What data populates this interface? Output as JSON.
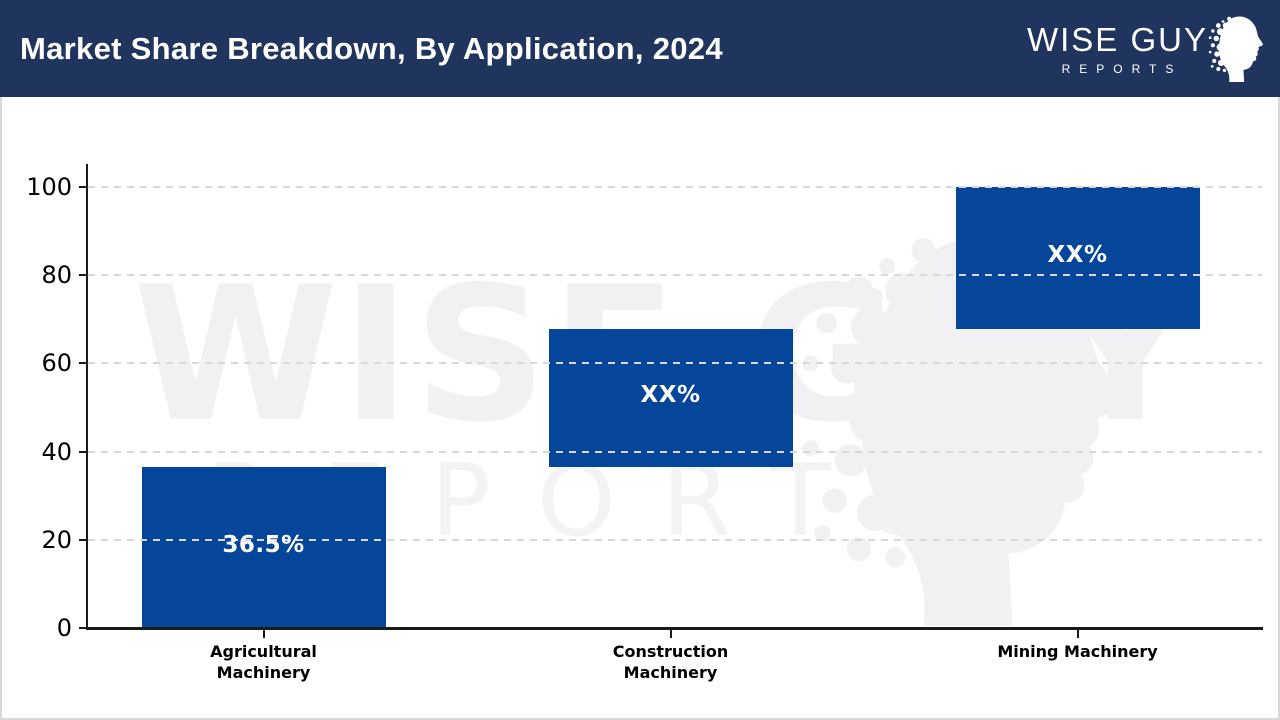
{
  "header": {
    "bg_color": "#1f355e",
    "title": "Market Share Breakdown, By Application, 2024",
    "logo": {
      "line1": "WISE GUY",
      "line2": "REPORTS"
    }
  },
  "watermark": {
    "line1": "WISE GUY",
    "line2": "REPORTS"
  },
  "chart_data": {
    "type": "bar",
    "subtype": "waterfall",
    "title": "Market Share Breakdown, By Application, 2024",
    "categories": [
      [
        "Agricultural",
        "Machinery"
      ],
      [
        "Construction",
        "Machinery"
      ],
      [
        "Mining Machinery"
      ]
    ],
    "series": [
      {
        "name": "Market share (%)",
        "segments": [
          {
            "category": "Agricultural Machinery",
            "base": 0,
            "top": 36.5,
            "label": "36.5%"
          },
          {
            "category": "Construction Machinery",
            "base": 36.5,
            "top": 67.8,
            "label": "XX%"
          },
          {
            "category": "Mining Machinery",
            "base": 67.8,
            "top": 100,
            "label": "XX%"
          }
        ]
      }
    ],
    "xlabel": "",
    "ylabel": "",
    "ylim": [
      0,
      100
    ],
    "yticks": [
      0,
      20,
      40,
      60,
      80,
      100
    ],
    "grid": "horizontal-dashed",
    "legend": "none",
    "bar_color": "#05469b",
    "bar_label_color": "#ffffff",
    "axis_color": "#1a1a1a",
    "gridline_color": "#d8d8d8"
  }
}
